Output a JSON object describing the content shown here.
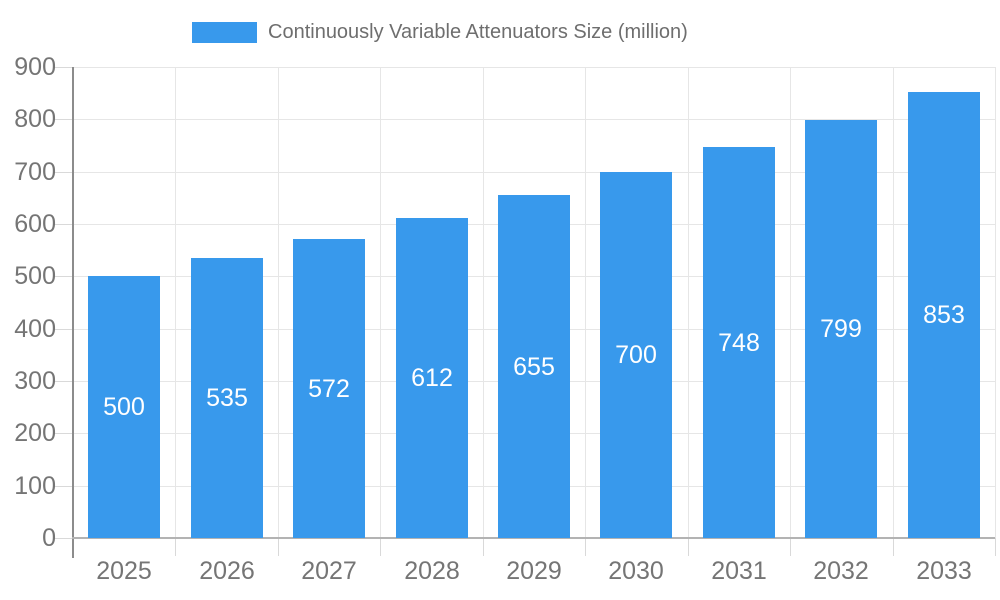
{
  "legend": {
    "label": "Continuously Variable Attenuators Size (million)"
  },
  "chart_data": {
    "type": "bar",
    "title": "Continuously Variable Attenuators Size (million)",
    "series_name": "Continuously Variable Attenuators Size (million)",
    "categories": [
      "2025",
      "2026",
      "2027",
      "2028",
      "2029",
      "2030",
      "2031",
      "2032",
      "2033"
    ],
    "values": [
      500,
      535,
      572,
      612,
      655,
      700,
      748,
      799,
      853
    ],
    "value_labels": [
      "500",
      "535",
      "572",
      "612",
      "655",
      "700",
      "748",
      "799",
      "853"
    ],
    "xlabel": "",
    "ylabel": "",
    "ylim": [
      0,
      900
    ],
    "yticks": [
      0,
      100,
      200,
      300,
      400,
      500,
      600,
      700,
      800,
      900
    ],
    "grid": true,
    "legend_position": "top",
    "value_label_position": "inside-center"
  },
  "colors": {
    "bar": "#3899ec",
    "bar_label": "#ffffff",
    "axis_label": "#757575",
    "legend_text": "#6e6e6e",
    "gridline": "#e6e6e6",
    "tick": "#d9d9d9",
    "axis_line": "#8c8c8c",
    "baseline": "#b3b3b3",
    "background": "#ffffff"
  }
}
